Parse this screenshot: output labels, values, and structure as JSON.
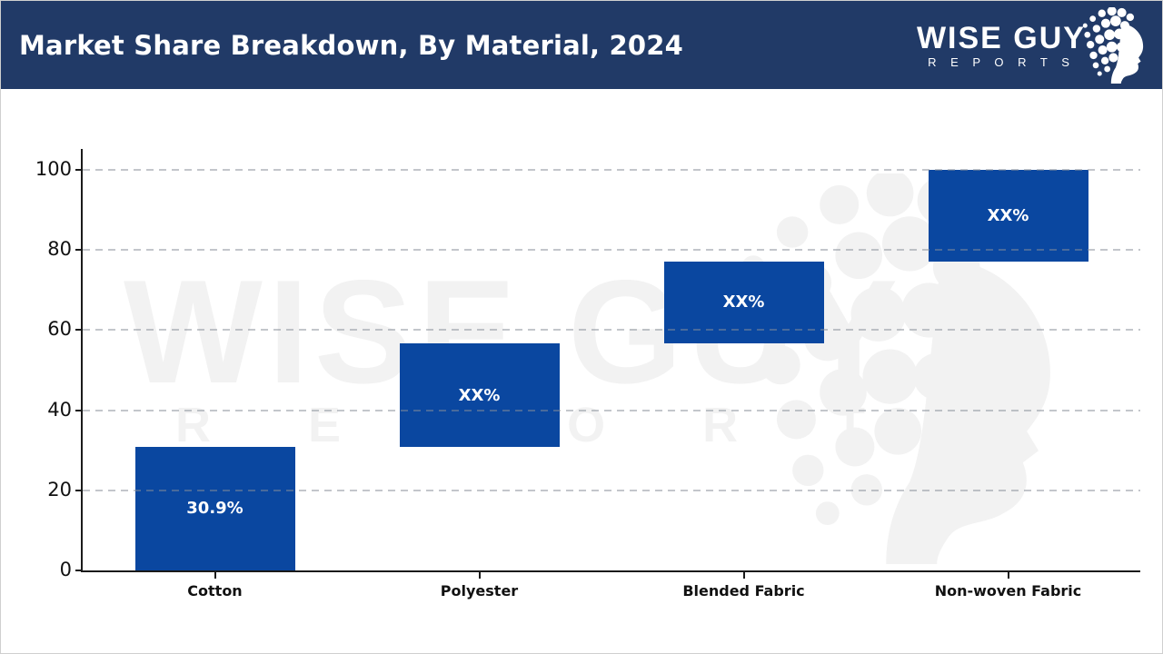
{
  "header": {
    "title": "Market Share Breakdown, By Material, 2024",
    "logo": {
      "line1": "WISE GUY",
      "line2": "R E P O R T S"
    }
  },
  "watermark": {
    "line1": "WISE GUY",
    "line2": "R E P O R T S"
  },
  "colors": {
    "header_bg": "#213a67",
    "bar": "#0a47a0",
    "axis": "#1a1a1a",
    "grid": "rgba(135,142,152,0.5)",
    "watermark": "#f2f2f2",
    "bar_label": "#ffffff"
  },
  "chart_data": {
    "type": "bar",
    "subtype": "waterfall",
    "title": "Market Share Breakdown, By Material, 2024",
    "categories": [
      "Cotton",
      "Polyester",
      "Blended Fabric",
      "Non-woven Fabric"
    ],
    "segments": [
      {
        "category": "Cotton",
        "start": 0,
        "end": 30.9,
        "label": "30.9%"
      },
      {
        "category": "Polyester",
        "start": 30.9,
        "end": 56.6,
        "label": "XX%"
      },
      {
        "category": "Blended Fabric",
        "start": 56.6,
        "end": 77.2,
        "label": "XX%"
      },
      {
        "category": "Non-woven Fabric",
        "start": 77.2,
        "end": 100,
        "label": "XX%"
      }
    ],
    "xlabel": "",
    "ylabel": "",
    "ylim": [
      0,
      100
    ],
    "yticks": [
      0,
      20,
      40,
      60,
      80,
      100
    ],
    "grid": "horizontal dashed, drawn above bars",
    "legend": "none",
    "bar_color": "#0a47a0"
  }
}
